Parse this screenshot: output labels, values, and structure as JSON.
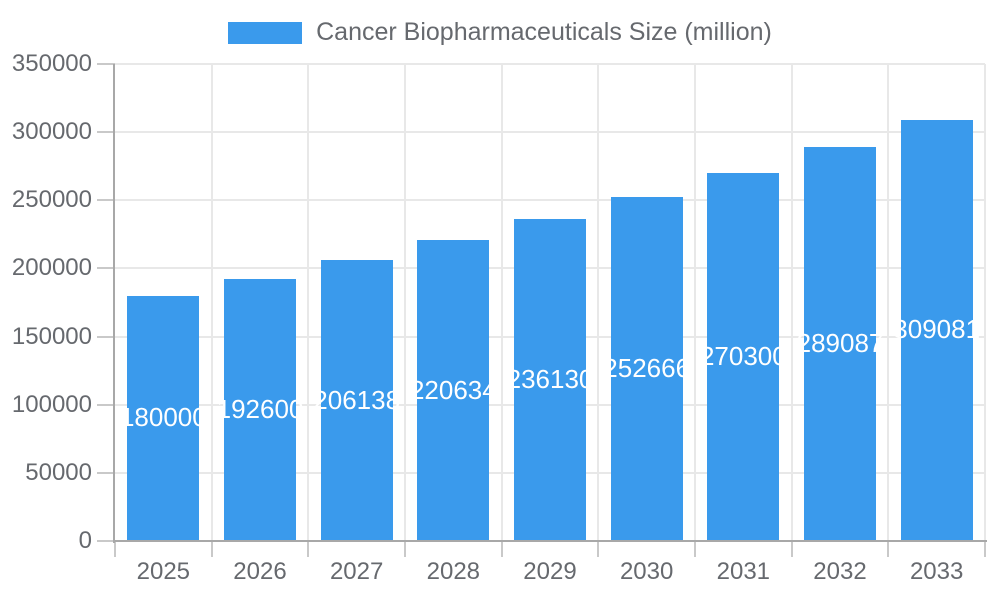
{
  "chart_data": {
    "type": "bar",
    "title": "Cancer Biopharmaceuticals Size (million)",
    "legend_entries": [
      "Cancer Biopharmaceuticals Size (million)"
    ],
    "legend_position": "top-center",
    "categories": [
      "2025",
      "2026",
      "2027",
      "2028",
      "2029",
      "2030",
      "2031",
      "2032",
      "2033"
    ],
    "values": [
      180000,
      192600,
      206138,
      220634,
      236130,
      252666,
      270300,
      289087,
      309081
    ],
    "bar_labels": [
      "180000",
      "192600",
      "206138",
      "220634",
      "236130",
      "252666",
      "270300",
      "289087",
      "309081"
    ],
    "bar_label_position": "inside-middle",
    "xlabel": "",
    "ylabel": "",
    "ylim": [
      0,
      350000
    ],
    "ytick_step": 50000,
    "ytick_labels": [
      "0",
      "50000",
      "100000",
      "150000",
      "200000",
      "250000",
      "300000",
      "350000"
    ],
    "grid": "both",
    "colors": {
      "bar": "#3A9AEC",
      "bar_label_text": "#FFFFFF",
      "axis_label_text": "#66696E",
      "legend_text": "#66696E",
      "grid_line": "#E8E8E8",
      "axis_line": "#A8A8A8",
      "tick_line": "#C9C9C9",
      "background": "#FFFFFF"
    }
  }
}
